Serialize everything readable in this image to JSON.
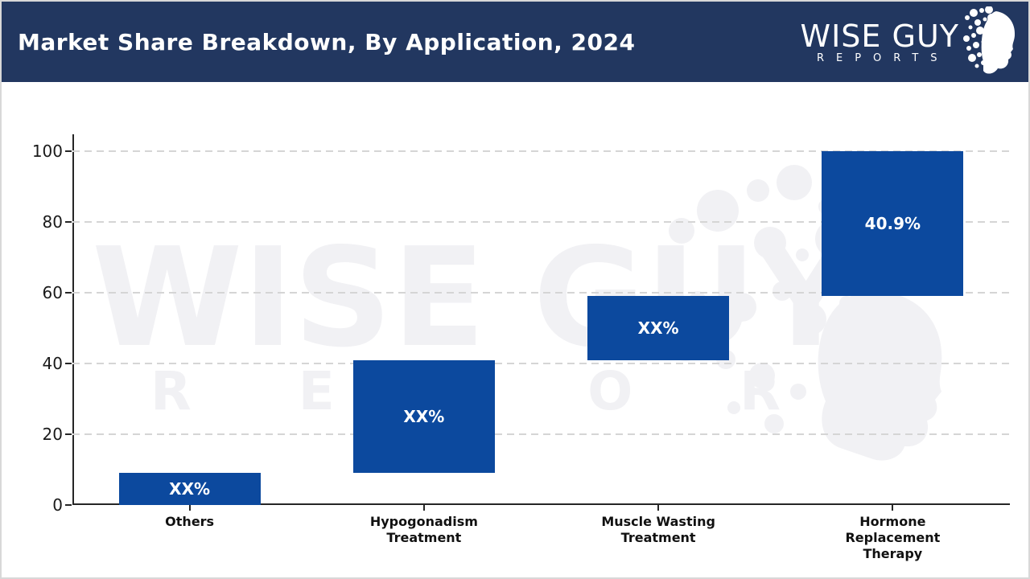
{
  "header": {
    "title": "Market Share Breakdown, By Application, 2024",
    "logo": {
      "line1": "WISE GUY",
      "line2": "REPORTS"
    }
  },
  "watermark": {
    "line1": "WISE GUY",
    "line2": "R E P O R T S"
  },
  "chart_data": {
    "type": "bar",
    "subtype": "waterfall",
    "title": "Market Share Breakdown, By Application, 2024",
    "categories": [
      "Others",
      "Hypogonadism\nTreatment",
      "Muscle Wasting\nTreatment",
      "Hormone\nReplacement\nTherapy"
    ],
    "segments": [
      {
        "category": "Others",
        "start": 0,
        "end": 9,
        "label": "XX%"
      },
      {
        "category": "Hypogonadism Treatment",
        "start": 9,
        "end": 41,
        "label": "XX%"
      },
      {
        "category": "Muscle Wasting Treatment",
        "start": 41,
        "end": 59,
        "label": "XX%"
      },
      {
        "category": "Hormone Replacement Therapy",
        "start": 59.1,
        "end": 100,
        "label": "40.9%"
      }
    ],
    "xlabel": "",
    "ylabel": "",
    "yticks": [
      0,
      20,
      40,
      60,
      80,
      100
    ],
    "ylim": [
      0,
      104.8
    ],
    "grid": "horizontal-dashed",
    "legend": null
  },
  "colors": {
    "header_bg": "#223760",
    "bar": "#0c499e",
    "value_label": "#ffffff",
    "axis": "#262626",
    "gridline": "#d5d5d5",
    "watermark": "#f1f1f4",
    "title_text": "#ffffff",
    "category_label": "#111111"
  }
}
